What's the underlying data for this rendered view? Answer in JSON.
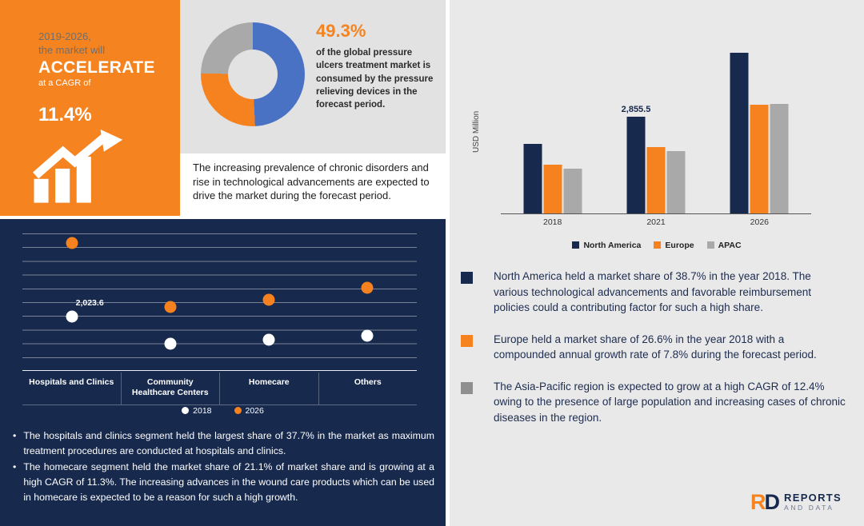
{
  "accelerate_card": {
    "line1": "2019-2026,",
    "line2": "the market will",
    "accelerate": "ACCELERATE",
    "cagr_label": "at a CAGR of",
    "cagr_value": "11.4%"
  },
  "donut_section": {
    "headline": "49.3%",
    "description": "of the global  pressure ulcers treatment market is consumed by the pressure relieving devices in the forecast period."
  },
  "drivers_paragraph": "The increasing prevalence of chronic disorders and rise in technological advancements are expected to drive the market during the forecast period.",
  "segment_bullets": [
    "The hospitals and clinics segment held the largest share of 37.7% in the market as maximum treatment  procedures are conducted at hospitals and clinics.",
    "The homecare segment held the market share of 21.1% of market share and is growing at a high CAGR of 11.3%. The increasing advances in the wound care products which can be used in homecare is expected to be a reason for such a high growth."
  ],
  "regional_bullets": [
    {
      "color": "#17294d",
      "text": "North America held a market share of 38.7% in the year 2018. The various technological advancements and favorable reimbursement policies could a contributing factor for such a high share."
    },
    {
      "color": "#f5821f",
      "text": "Europe held a market share of 26.6% in the year 2018 with a compounded annual growth rate of 7.8% during the forecast period."
    },
    {
      "color": "#8f8f8f",
      "text": "The Asia-Pacific region is expected to grow at a high CAGR of 12.4% owing to the presence of large population and increasing cases of chronic diseases  in the region."
    }
  ],
  "logo": {
    "mark_r": "R",
    "mark_d": "D",
    "name_top": "REPORTS",
    "name_bottom": "AND DATA"
  },
  "chart_data": [
    {
      "type": "pie",
      "title": "49.3%",
      "labels": [
        "pressure relieving devices",
        "",
        ""
      ],
      "values": [
        49.3,
        26.0,
        24.7
      ],
      "colors": [
        "#4a72c4",
        "#f5821f",
        "#a9a9a9"
      ],
      "donut_hole": true
    },
    {
      "type": "scatter",
      "categories": [
        "Hospitals and Clinics",
        "Community Healthcare Centers",
        "Homecare",
        "Others"
      ],
      "series": [
        {
          "name": "2018",
          "color": "#ffffff",
          "values": [
            2023.6,
            1000,
            1150,
            1300
          ]
        },
        {
          "name": "2026",
          "color": "#f5821f",
          "values": [
            4830,
            2390,
            2690,
            3140
          ]
        }
      ],
      "ylim": [
        0,
        5200
      ],
      "grid": true,
      "legend_position": "bottom",
      "labeled_point": {
        "series": "2018",
        "category": "Hospitals and Clinics",
        "label": "2,023.6"
      }
    },
    {
      "type": "bar",
      "ylabel": "USD Million",
      "categories": [
        "2018",
        "2021",
        "2026"
      ],
      "series": [
        {
          "name": "North America",
          "color": "#17294d",
          "values": [
            2050,
            2855.5,
            4750
          ]
        },
        {
          "name": "Europe",
          "color": "#f5821f",
          "values": [
            1430,
            1950,
            3200
          ]
        },
        {
          "name": "APAC",
          "color": "#a9a9a9",
          "values": [
            1330,
            1830,
            3230
          ]
        }
      ],
      "ylim": [
        0,
        5000
      ],
      "legend_position": "bottom",
      "labeled_point": {
        "series": "North America",
        "category": "2021",
        "label": "2,855.5"
      }
    }
  ]
}
